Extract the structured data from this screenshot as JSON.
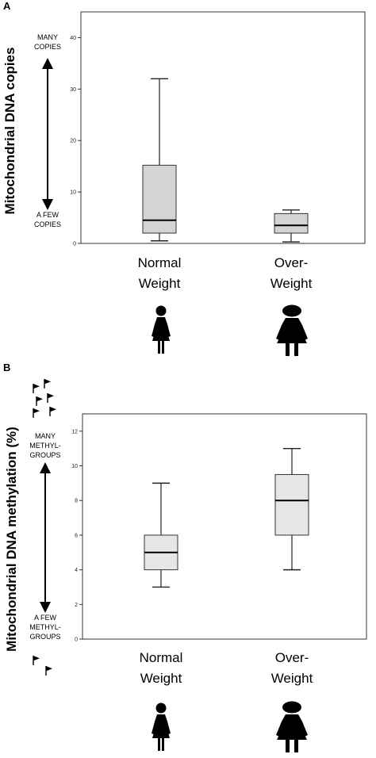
{
  "chart_data": [
    {
      "type": "box",
      "panel_label": "A",
      "title": "",
      "ylabel": "Mitochondrial DNA copies",
      "xlabel": "",
      "ylim": [
        0,
        45
      ],
      "yticks": [
        0,
        10,
        20,
        30,
        40
      ],
      "grid": false,
      "categories": [
        "Normal\nWeight",
        "Over-\nWeight"
      ],
      "boxes": [
        {
          "whisker_low": 0.5,
          "q1": 2,
          "median": 4.5,
          "q3": 15.2,
          "whisker_high": 32
        },
        {
          "whisker_low": 0.3,
          "q1": 2,
          "median": 3.5,
          "q3": 5.8,
          "whisker_high": 6.5
        }
      ],
      "box_color": "#d4d4d4",
      "annotation_top": "MANY\nCOPIES",
      "annotation_bottom": "A FEW\nCOPIES",
      "icons": [
        "woman-slim-icon",
        "woman-overweight-icon"
      ]
    },
    {
      "type": "box",
      "panel_label": "B",
      "title": "",
      "ylabel": "Mitochondrial DNA methylation (%)",
      "xlabel": "",
      "ylim": [
        0,
        13
      ],
      "yticks": [
        0,
        2,
        4,
        6,
        8,
        10,
        12
      ],
      "grid": false,
      "categories": [
        "Normal\nWeight",
        "Over-\nWeight"
      ],
      "boxes": [
        {
          "whisker_low": 3,
          "q1": 4,
          "median": 5,
          "q3": 6,
          "whisker_high": 9
        },
        {
          "whisker_low": 4,
          "q1": 6,
          "median": 8,
          "q3": 9.5,
          "whisker_high": 11
        }
      ],
      "box_color": "#e6e6e6",
      "annotation_top": "MANY\nMETHYL-\nGROUPS",
      "annotation_bottom": "A FEW\nMETHYL-\nGROUPS",
      "icons": [
        "woman-slim-icon",
        "woman-overweight-icon"
      ],
      "flag_icons": [
        "flags-many-icon",
        "flags-few-icon"
      ]
    }
  ]
}
